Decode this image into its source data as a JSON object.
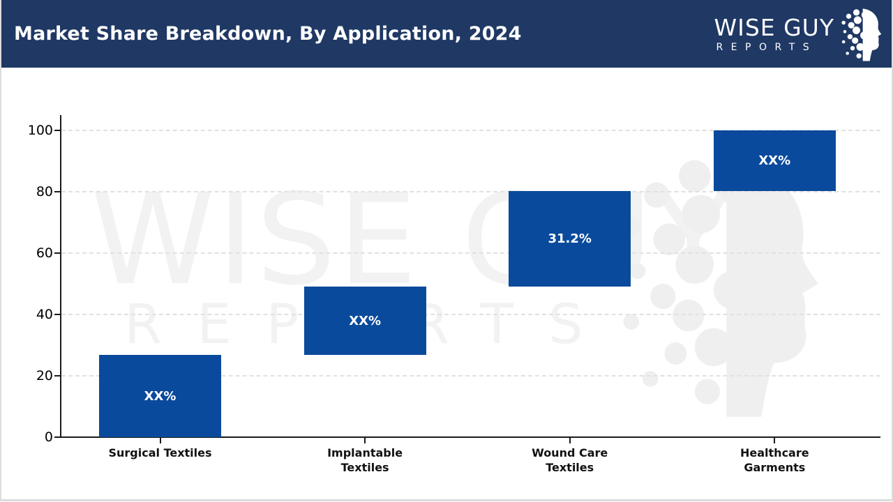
{
  "header": {
    "title": "Market Share Breakdown, By Application, 2024",
    "background_color": "#1f3864",
    "logo": {
      "line1": "WISE GUY",
      "line2": "REPORTS",
      "icon": "dotted-face-profile"
    }
  },
  "watermark": {
    "line1": "WISE GUY",
    "line2": "REPORTS",
    "icon": "dotted-face-profile"
  },
  "chart_data": {
    "type": "bar",
    "subtype": "floating-waterfall",
    "title": "Market Share Breakdown, By Application, 2024",
    "xlabel": "",
    "ylabel": "",
    "ylim": [
      0,
      100
    ],
    "yticks": [
      0,
      20,
      40,
      60,
      80,
      100
    ],
    "grid": "dashed-horizontal",
    "legend": "none",
    "bar_color": "#0a4a9c",
    "bar_label_color": "#ffffff",
    "categories": [
      "Surgical Textiles",
      "Implantable\nTextiles",
      "Wound Care\nTextiles",
      "Healthcare\nGarments"
    ],
    "segments": [
      {
        "category": "Surgical Textiles",
        "start": 0,
        "end": 26.8,
        "label": "XX%"
      },
      {
        "category": "Implantable Textiles",
        "start": 26.8,
        "end": 49.0,
        "label": "XX%"
      },
      {
        "category": "Wound Care Textiles",
        "start": 49.0,
        "end": 80.2,
        "label": "31.2%"
      },
      {
        "category": "Healthcare Garments",
        "start": 80.2,
        "end": 100,
        "label": "XX%"
      }
    ]
  }
}
